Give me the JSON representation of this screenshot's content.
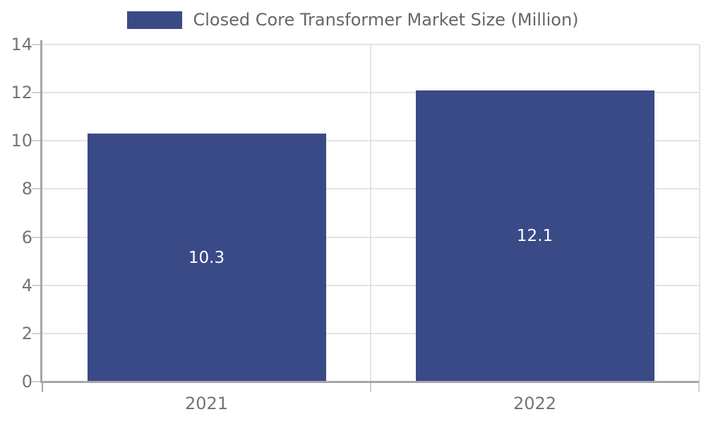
{
  "chart_data": {
    "type": "bar",
    "title": "",
    "categories": [
      "2021",
      "2022"
    ],
    "series": [
      {
        "name": "Closed Core Transformer Market Size (Million)",
        "values": [
          10.3,
          12.1
        ],
        "labels": [
          "10.3",
          "12.1"
        ]
      }
    ],
    "xlabel": "",
    "ylabel": "",
    "ylim": [
      0,
      14
    ],
    "yticks": [
      0,
      2,
      4,
      6,
      8,
      10,
      12,
      14
    ],
    "grid": true,
    "legend_position": "top-center",
    "bar_label_position": "center-inside"
  },
  "colors": {
    "bar": "#3A4A87",
    "bar_label": "#ffffff",
    "grid": "#e3e3e6",
    "axis": "#a5a5ad",
    "tick": "#cfcfd4",
    "tick_label": "#757575",
    "legend_text": "#666666",
    "background": "#ffffff"
  }
}
